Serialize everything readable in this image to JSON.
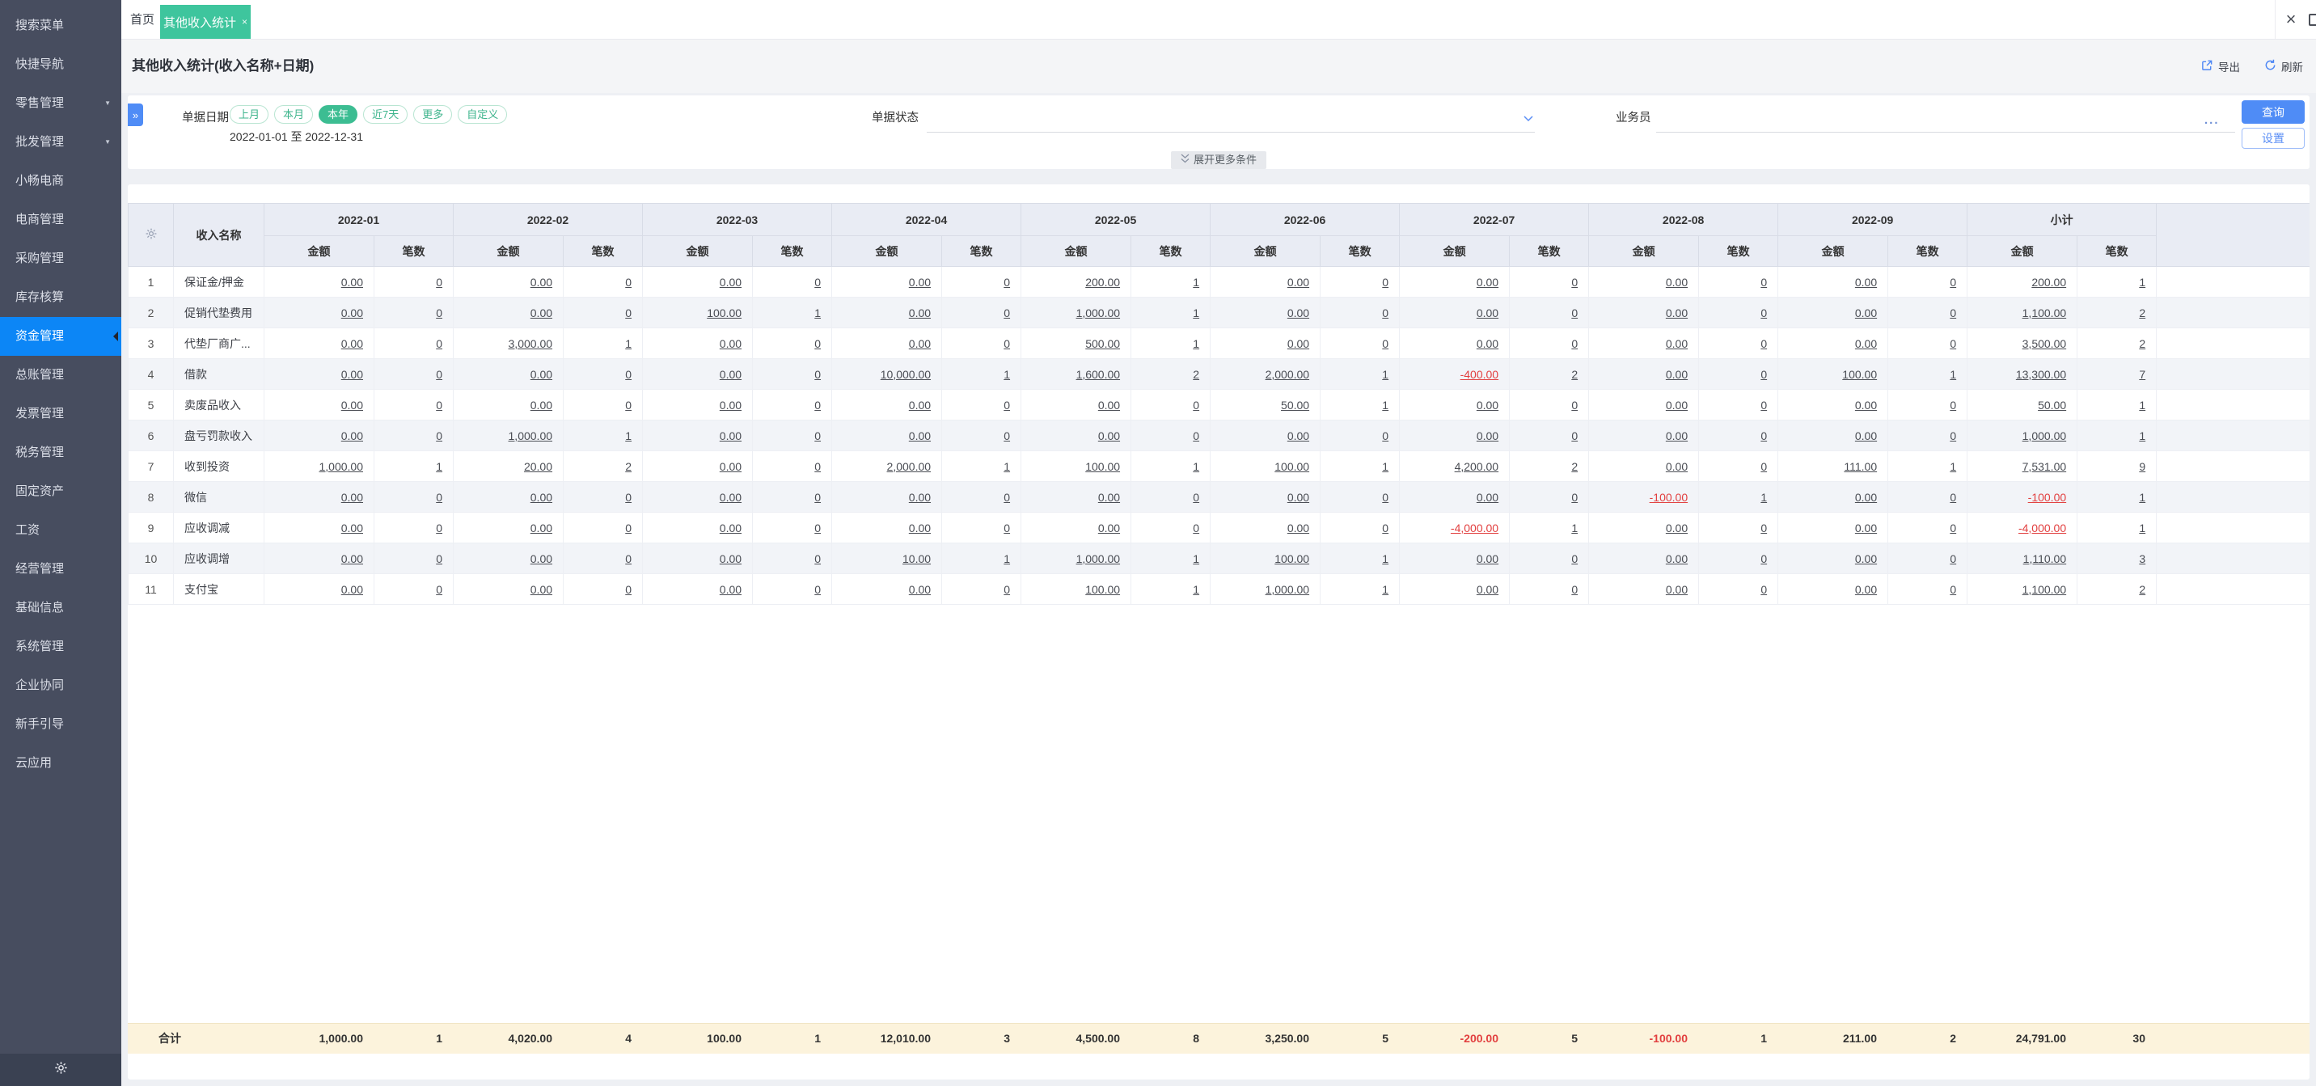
{
  "sidebar": {
    "items": [
      {
        "label": "搜索菜单"
      },
      {
        "label": "快捷导航"
      },
      {
        "label": "零售管理",
        "expandable": true
      },
      {
        "label": "批发管理",
        "expandable": true
      },
      {
        "label": "小畅电商"
      },
      {
        "label": "电商管理"
      },
      {
        "label": "采购管理"
      },
      {
        "label": "库存核算"
      },
      {
        "label": "资金管理",
        "active": true
      },
      {
        "label": "总账管理"
      },
      {
        "label": "发票管理"
      },
      {
        "label": "税务管理"
      },
      {
        "label": "固定资产"
      },
      {
        "label": "工资"
      },
      {
        "label": "经营管理"
      },
      {
        "label": "基础信息"
      },
      {
        "label": "系统管理"
      },
      {
        "label": "企业协同"
      },
      {
        "label": "新手引导"
      },
      {
        "label": "云应用"
      }
    ]
  },
  "tab_bar": {
    "home_tab": "首页",
    "active_tab": "其他收入统计",
    "close_glyph": "×"
  },
  "window": {
    "close_glyph": "×"
  },
  "toolbar": {
    "title": "其他收入统计(收入名称+日期)",
    "export_label": "导出",
    "refresh_label": "刷新"
  },
  "filters": {
    "date_label": "单据日期",
    "date_pills": [
      {
        "label": "上月"
      },
      {
        "label": "本月"
      },
      {
        "label": "本年",
        "active": true
      },
      {
        "label": "近7天"
      },
      {
        "label": "更多"
      },
      {
        "label": "自定义"
      }
    ],
    "date_range": "2022-01-01 至 2022-12-31",
    "status_label": "单据状态",
    "salesman_label": "业务员",
    "more_dots": "...",
    "expand_more_label": "展开更多条件",
    "query_label": "查询",
    "settings_label": "设置"
  },
  "table": {
    "name_header": "收入名称",
    "amount_header": "金额",
    "count_header": "笔数",
    "months": [
      "2022-01",
      "2022-02",
      "2022-03",
      "2022-04",
      "2022-05",
      "2022-06",
      "2022-07",
      "2022-08",
      "2022-09",
      "小计"
    ],
    "rows": [
      {
        "index": 1,
        "name": "保证金/押金",
        "cells": [
          [
            "0.00",
            "0"
          ],
          [
            "0.00",
            "0"
          ],
          [
            "0.00",
            "0"
          ],
          [
            "0.00",
            "0"
          ],
          [
            "200.00",
            "1"
          ],
          [
            "0.00",
            "0"
          ],
          [
            "0.00",
            "0"
          ],
          [
            "0.00",
            "0"
          ],
          [
            "0.00",
            "0"
          ],
          [
            "200.00",
            "1"
          ]
        ]
      },
      {
        "index": 2,
        "name": "促销代垫费用",
        "cells": [
          [
            "0.00",
            "0"
          ],
          [
            "0.00",
            "0"
          ],
          [
            "100.00",
            "1"
          ],
          [
            "0.00",
            "0"
          ],
          [
            "1,000.00",
            "1"
          ],
          [
            "0.00",
            "0"
          ],
          [
            "0.00",
            "0"
          ],
          [
            "0.00",
            "0"
          ],
          [
            "0.00",
            "0"
          ],
          [
            "1,100.00",
            "2"
          ]
        ]
      },
      {
        "index": 3,
        "name": "代垫厂商广...",
        "cells": [
          [
            "0.00",
            "0"
          ],
          [
            "3,000.00",
            "1"
          ],
          [
            "0.00",
            "0"
          ],
          [
            "0.00",
            "0"
          ],
          [
            "500.00",
            "1"
          ],
          [
            "0.00",
            "0"
          ],
          [
            "0.00",
            "0"
          ],
          [
            "0.00",
            "0"
          ],
          [
            "0.00",
            "0"
          ],
          [
            "3,500.00",
            "2"
          ]
        ]
      },
      {
        "index": 4,
        "name": "借款",
        "cells": [
          [
            "0.00",
            "0"
          ],
          [
            "0.00",
            "0"
          ],
          [
            "0.00",
            "0"
          ],
          [
            "10,000.00",
            "1"
          ],
          [
            "1,600.00",
            "2"
          ],
          [
            "2,000.00",
            "1"
          ],
          [
            "-400.00",
            "2"
          ],
          [
            "0.00",
            "0"
          ],
          [
            "100.00",
            "1"
          ],
          [
            "13,300.00",
            "7"
          ]
        ]
      },
      {
        "index": 5,
        "name": "卖废品收入",
        "cells": [
          [
            "0.00",
            "0"
          ],
          [
            "0.00",
            "0"
          ],
          [
            "0.00",
            "0"
          ],
          [
            "0.00",
            "0"
          ],
          [
            "0.00",
            "0"
          ],
          [
            "50.00",
            "1"
          ],
          [
            "0.00",
            "0"
          ],
          [
            "0.00",
            "0"
          ],
          [
            "0.00",
            "0"
          ],
          [
            "50.00",
            "1"
          ]
        ]
      },
      {
        "index": 6,
        "name": "盘亏罚款收入",
        "cells": [
          [
            "0.00",
            "0"
          ],
          [
            "1,000.00",
            "1"
          ],
          [
            "0.00",
            "0"
          ],
          [
            "0.00",
            "0"
          ],
          [
            "0.00",
            "0"
          ],
          [
            "0.00",
            "0"
          ],
          [
            "0.00",
            "0"
          ],
          [
            "0.00",
            "0"
          ],
          [
            "0.00",
            "0"
          ],
          [
            "1,000.00",
            "1"
          ]
        ]
      },
      {
        "index": 7,
        "name": "收到投资",
        "cells": [
          [
            "1,000.00",
            "1"
          ],
          [
            "20.00",
            "2"
          ],
          [
            "0.00",
            "0"
          ],
          [
            "2,000.00",
            "1"
          ],
          [
            "100.00",
            "1"
          ],
          [
            "100.00",
            "1"
          ],
          [
            "4,200.00",
            "2"
          ],
          [
            "0.00",
            "0"
          ],
          [
            "111.00",
            "1"
          ],
          [
            "7,531.00",
            "9"
          ]
        ]
      },
      {
        "index": 8,
        "name": "微信",
        "cells": [
          [
            "0.00",
            "0"
          ],
          [
            "0.00",
            "0"
          ],
          [
            "0.00",
            "0"
          ],
          [
            "0.00",
            "0"
          ],
          [
            "0.00",
            "0"
          ],
          [
            "0.00",
            "0"
          ],
          [
            "0.00",
            "0"
          ],
          [
            "-100.00",
            "1"
          ],
          [
            "0.00",
            "0"
          ],
          [
            "-100.00",
            "1"
          ]
        ]
      },
      {
        "index": 9,
        "name": "应收调减",
        "cells": [
          [
            "0.00",
            "0"
          ],
          [
            "0.00",
            "0"
          ],
          [
            "0.00",
            "0"
          ],
          [
            "0.00",
            "0"
          ],
          [
            "0.00",
            "0"
          ],
          [
            "0.00",
            "0"
          ],
          [
            "-4,000.00",
            "1"
          ],
          [
            "0.00",
            "0"
          ],
          [
            "0.00",
            "0"
          ],
          [
            "-4,000.00",
            "1"
          ]
        ]
      },
      {
        "index": 10,
        "name": "应收调增",
        "cells": [
          [
            "0.00",
            "0"
          ],
          [
            "0.00",
            "0"
          ],
          [
            "0.00",
            "0"
          ],
          [
            "10.00",
            "1"
          ],
          [
            "1,000.00",
            "1"
          ],
          [
            "100.00",
            "1"
          ],
          [
            "0.00",
            "0"
          ],
          [
            "0.00",
            "0"
          ],
          [
            "0.00",
            "0"
          ],
          [
            "1,110.00",
            "3"
          ]
        ]
      },
      {
        "index": 11,
        "name": "支付宝",
        "cells": [
          [
            "0.00",
            "0"
          ],
          [
            "0.00",
            "0"
          ],
          [
            "0.00",
            "0"
          ],
          [
            "0.00",
            "0"
          ],
          [
            "100.00",
            "1"
          ],
          [
            "1,000.00",
            "1"
          ],
          [
            "0.00",
            "0"
          ],
          [
            "0.00",
            "0"
          ],
          [
            "0.00",
            "0"
          ],
          [
            "1,100.00",
            "2"
          ]
        ]
      }
    ],
    "total_row": {
      "label": "合计",
      "cells": [
        [
          "1,000.00",
          "1"
        ],
        [
          "4,020.00",
          "4"
        ],
        [
          "100.00",
          "1"
        ],
        [
          "12,010.00",
          "3"
        ],
        [
          "4,500.00",
          "8"
        ],
        [
          "3,250.00",
          "5"
        ],
        [
          "-200.00",
          "5"
        ],
        [
          "-100.00",
          "1"
        ],
        [
          "211.00",
          "2"
        ],
        [
          "24,791.00",
          "30"
        ]
      ]
    }
  },
  "colors": {
    "page_bg": "#eef0f4",
    "sidebar_bg": "#474d5f",
    "sidebar_footer_bg": "#3a4152",
    "sidebar_active_bg": "#0c86f6",
    "tab_active_bg": "#3ec59d",
    "accent_blue": "#4f8cf6",
    "pill_green": "#3cbd92",
    "header_bg": "#e9ecf4",
    "stripe": "#f2f4f8",
    "link_gray": "#4a4d54",
    "negative_red": "#e24040",
    "total_row_bg": "#fcf3dc"
  }
}
